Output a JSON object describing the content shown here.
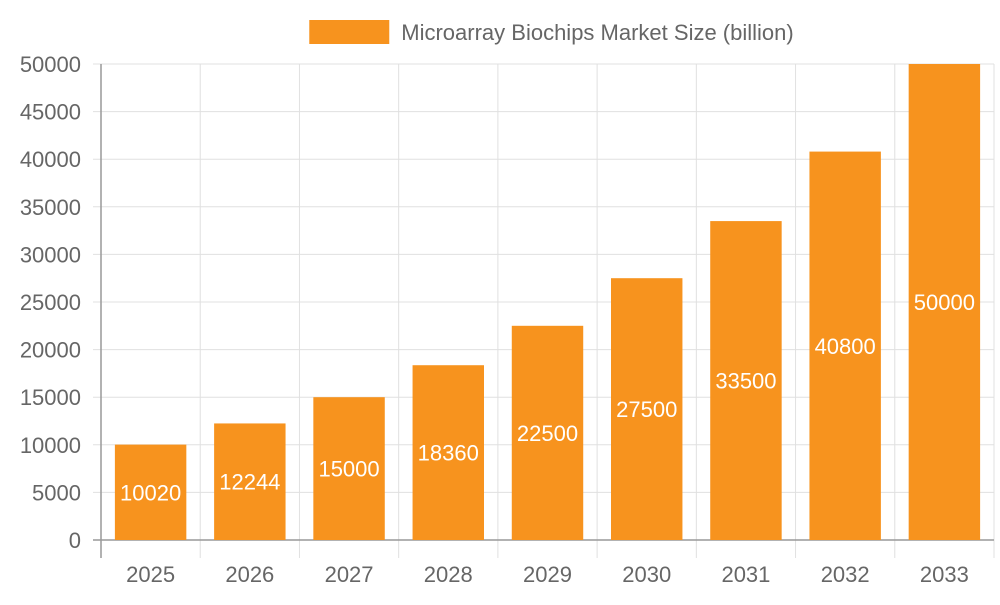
{
  "chart_data": {
    "type": "bar",
    "categories": [
      "2025",
      "2026",
      "2027",
      "2028",
      "2029",
      "2030",
      "2031",
      "2032",
      "2033"
    ],
    "series": [
      {
        "name": "Microarray Biochips Market Size (billion)",
        "values": [
          10020,
          12244,
          15000,
          18360,
          22500,
          27500,
          33500,
          40800,
          50000
        ]
      }
    ],
    "data_labels": [
      "10020",
      "12244",
      "15000",
      "18360",
      "22500",
      "27500",
      "33500",
      "40800",
      "50000"
    ],
    "y_ticks": [
      "0",
      "5000",
      "10000",
      "15000",
      "20000",
      "25000",
      "30000",
      "35000",
      "40000",
      "45000",
      "50000"
    ],
    "ylim": [
      0,
      50000
    ],
    "grid": true,
    "legend_position": "top-center",
    "colors": {
      "bar": "#f7931e",
      "grid": "#e0e0e0",
      "axis": "#999999",
      "text": "#666666",
      "data_label": "#ffffff"
    }
  }
}
